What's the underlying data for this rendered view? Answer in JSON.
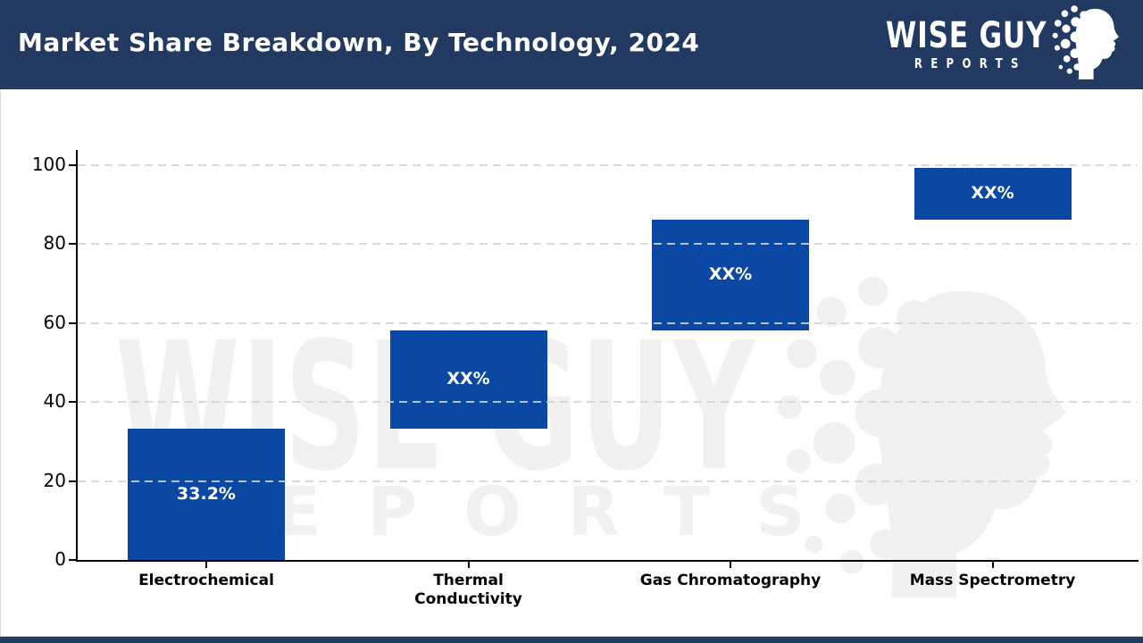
{
  "header": {
    "title": "Market Share Breakdown, By Technology, 2024",
    "bg_color": "#223a62",
    "logo": {
      "name": "WISE GUY",
      "subtitle": "REPORTS"
    }
  },
  "watermark": {
    "line1": "WISE GUY",
    "line2": "REPORTS"
  },
  "chart_data": {
    "type": "bar",
    "subtype": "waterfall",
    "title": "Market Share Breakdown, By Technology, 2024",
    "categories": [
      "Electrochemical",
      "Thermal\nConductivity",
      "Gas Chromatography",
      "Mass Spectrometry"
    ],
    "segments": [
      {
        "category": "Electrochemical",
        "from": 0,
        "to": 33.2,
        "label": "33.2%"
      },
      {
        "category": "Thermal Conductivity",
        "from": 33.2,
        "to": 58.2,
        "label": "XX%"
      },
      {
        "category": "Gas Chromatography",
        "from": 58.2,
        "to": 86.3,
        "label": "XX%"
      },
      {
        "category": "Mass Spectrometry",
        "from": 86.3,
        "to": 99.4,
        "label": "XX%"
      }
    ],
    "xlabel": "",
    "ylabel": "",
    "ylim": [
      0,
      105
    ],
    "yticks": [
      0,
      20,
      40,
      60,
      80,
      100
    ],
    "grid": "dashed-horizontal",
    "legend": "none",
    "bar_color": "#0a48a3",
    "bar_label_color": "#ffffff",
    "grid_color": "#d3d3d3",
    "axis_color": "#000000"
  }
}
